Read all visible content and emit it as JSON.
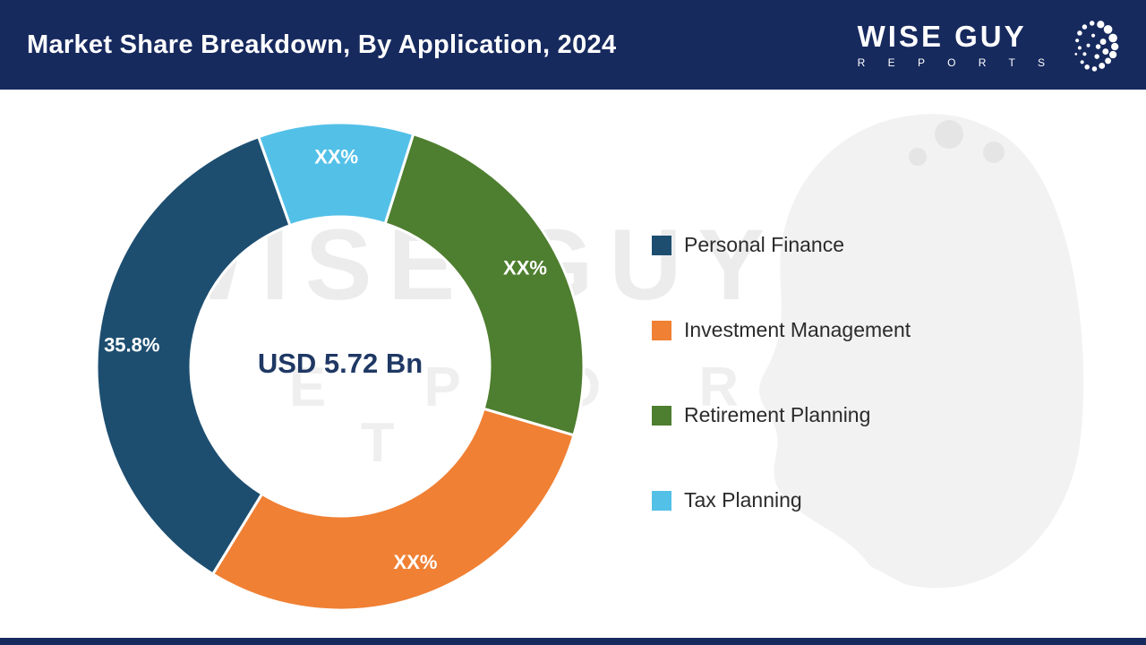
{
  "header": {
    "title": "Market Share Breakdown, By Application, 2024",
    "bg_color": "#172A5E",
    "logo": {
      "line1": "WISE GUY",
      "line2": "R E P O R T S"
    }
  },
  "watermark": {
    "line1": "WISE GUY",
    "line2": "R E P O R T S"
  },
  "chart_data": {
    "type": "pie",
    "donut": true,
    "title": "Market Share Breakdown, By Application, 2024",
    "center_label": "USD 5.72 Bn",
    "legend_position": "right",
    "start_angle": 340.4,
    "direction": "counterclockwise",
    "segments": [
      {
        "label": "Personal Finance",
        "value": 35.8,
        "display": "35.8%",
        "color": "#1D4E70"
      },
      {
        "label": "Investment Management",
        "value": 29.2,
        "display": "XX%",
        "color": "#F08034"
      },
      {
        "label": "Retirement Planning",
        "value": 24.7,
        "display": "XX%",
        "color": "#4E7E2F"
      },
      {
        "label": "Tax Planning",
        "value": 10.3,
        "display": "XX%",
        "color": "#53C0E8"
      }
    ]
  },
  "colors": {
    "header_bar": "#172A5E",
    "footer_bar": "#172A5E",
    "center_text": "#1F3864",
    "legend_text": "#2B2B2B"
  }
}
